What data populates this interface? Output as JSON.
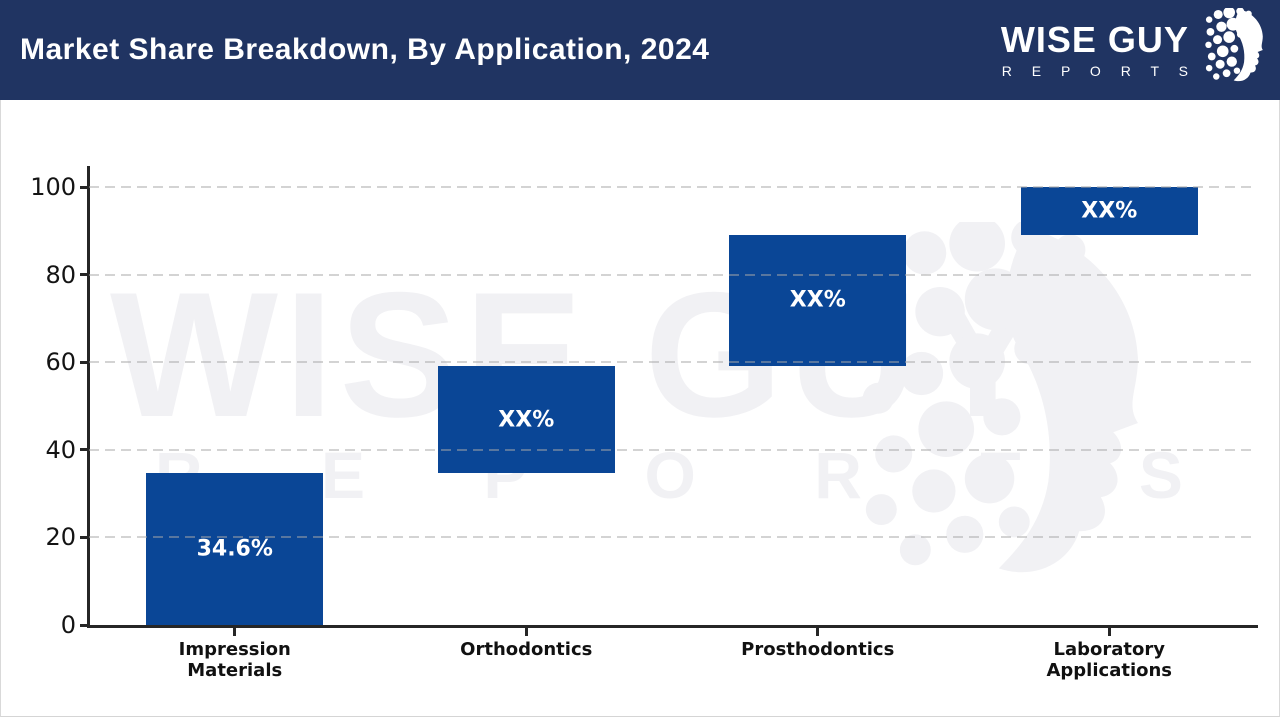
{
  "header": {
    "title": "Market Share Breakdown, By Application, 2024",
    "logo": {
      "line1": "WISE GUY",
      "line2": "R E P O R T S"
    }
  },
  "watermark": {
    "line1": "WISE GUY",
    "line2": "R E P O R T S"
  },
  "chart_data": {
    "type": "bar",
    "variant": "waterfall",
    "title": "Market Share Breakdown, By Application, 2024",
    "categories": [
      "Impression Materials",
      "Orthodontics",
      "Prosthodontics",
      "Laboratory Applications"
    ],
    "series": [
      {
        "name": "Market share (%)",
        "segments": [
          {
            "category": "Impression Materials",
            "start": 0,
            "end": 34.6,
            "label": "34.6%"
          },
          {
            "category": "Orthodontics",
            "start": 34.6,
            "end": 59.2,
            "label": "XX%"
          },
          {
            "category": "Prosthodontics",
            "start": 59.2,
            "end": 89,
            "label": "XX%"
          },
          {
            "category": "Laboratory Applications",
            "start": 89,
            "end": 100,
            "label": "XX%"
          }
        ]
      }
    ],
    "xlabel": "",
    "ylabel": "",
    "ylim": [
      0,
      100
    ],
    "yticks": [
      0,
      20,
      40,
      60,
      80,
      100
    ],
    "grid": "horizontal-dashed",
    "legend": false,
    "colors": {
      "bar": "#0a4696",
      "bar_label": "#ffffff",
      "header_bg": "#203462",
      "axis": "#262626",
      "gridline": "#e0e0e0",
      "watermark": "#f1f1f4"
    }
  }
}
